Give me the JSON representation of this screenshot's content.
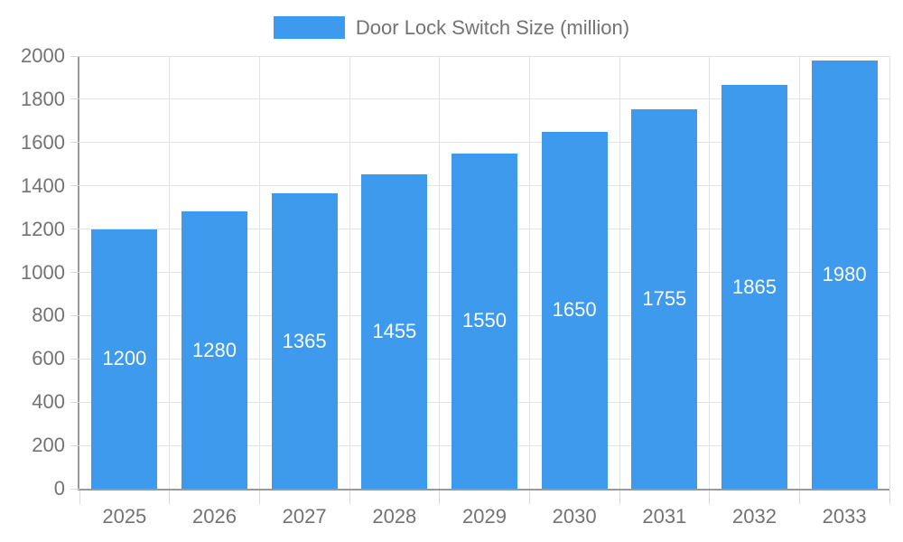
{
  "chart_data": {
    "type": "bar",
    "title": "Door Lock Switch Size (million)",
    "categories": [
      "2025",
      "2026",
      "2027",
      "2028",
      "2029",
      "2030",
      "2031",
      "2032",
      "2033"
    ],
    "series": [
      {
        "name": "Door Lock Switch Size (million)",
        "values": [
          1200,
          1280,
          1365,
          1455,
          1550,
          1650,
          1755,
          1865,
          1980
        ]
      }
    ],
    "values": [
      1200,
      1280,
      1365,
      1455,
      1550,
      1650,
      1755,
      1865,
      1980
    ],
    "bar_labels": [
      "1200",
      "1280",
      "1365",
      "1455",
      "1550",
      "1650",
      "1755",
      "1865",
      "1980"
    ],
    "xlabel": "",
    "ylabel": "",
    "ylim": [
      0,
      2000
    ],
    "ytick_step": 200,
    "ytick_labels": [
      "0",
      "200",
      "400",
      "600",
      "800",
      "1000",
      "1200",
      "1400",
      "1600",
      "1800",
      "2000"
    ],
    "grid": true,
    "legend_position": "top-center",
    "colors": {
      "bar": "#3D9AEC",
      "bar_label_text": "#FFFFFF",
      "axis_line": "#999999",
      "gridline": "#E3E3E3",
      "tick_mark": "#D9D9D9",
      "axis_text": "#737373"
    }
  }
}
